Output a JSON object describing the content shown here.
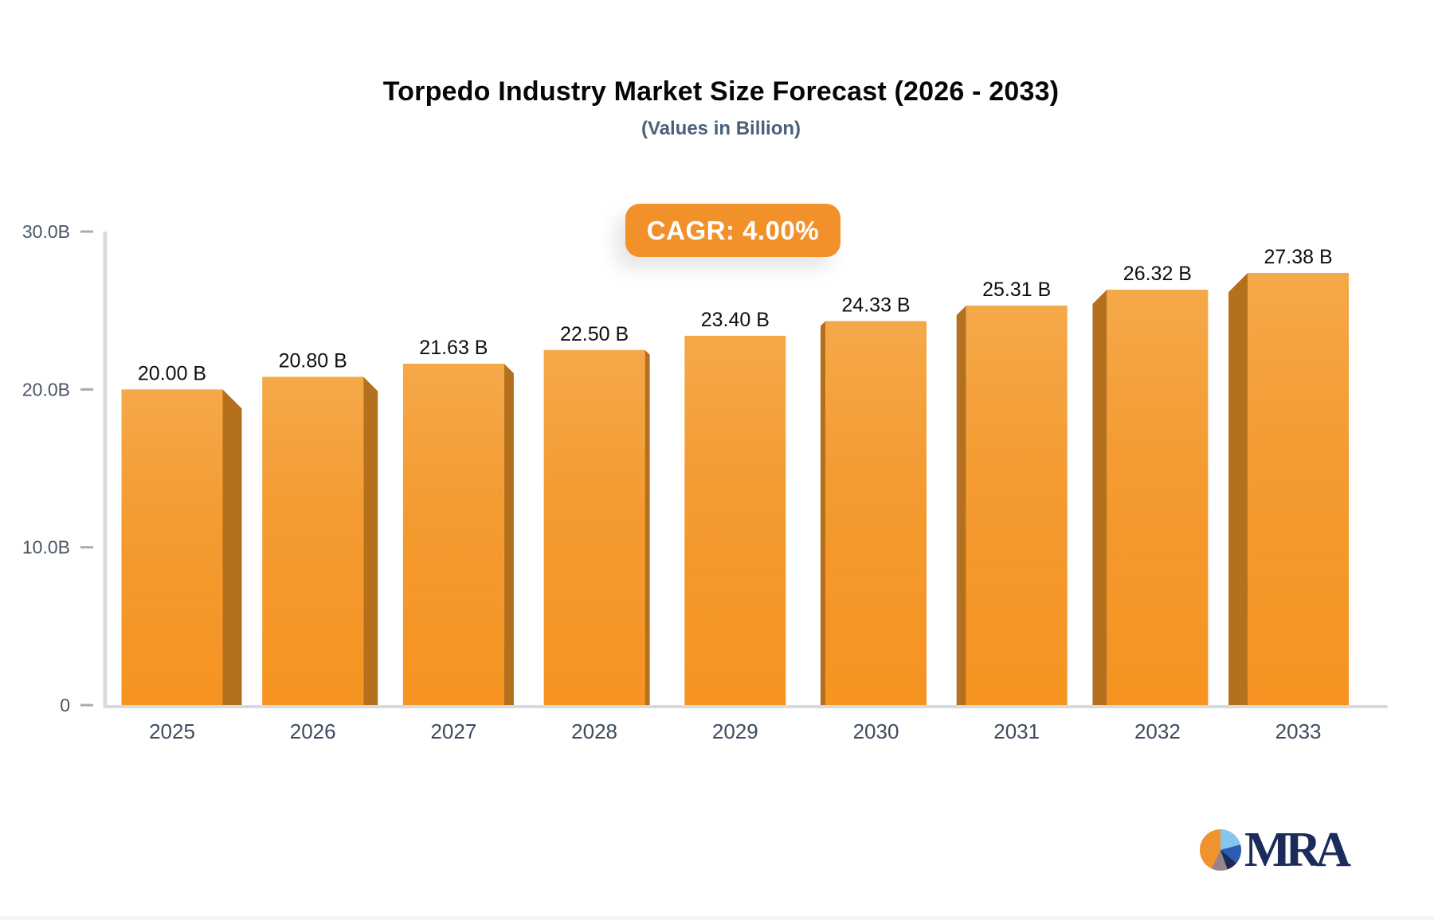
{
  "chart_data": {
    "type": "bar",
    "title": "Torpedo Industry Market Size Forecast (2026 - 2033)",
    "subtitle": "(Values in Billion)",
    "annotation": "CAGR: 4.00%",
    "categories": [
      "2025",
      "2026",
      "2027",
      "2028",
      "2029",
      "2030",
      "2031",
      "2032",
      "2033"
    ],
    "values": [
      20.0,
      20.8,
      21.63,
      22.5,
      23.4,
      24.33,
      25.31,
      26.32,
      27.38
    ],
    "value_labels": [
      "20.00 B",
      "20.80 B",
      "21.63 B",
      "22.50 B",
      "23.40 B",
      "24.33 B",
      "25.31 B",
      "26.32 B",
      "27.38 B"
    ],
    "xlabel": "",
    "ylabel": "",
    "ylim": [
      0,
      30
    ],
    "yticks": [
      {
        "v": 0,
        "label": "0"
      },
      {
        "v": 10,
        "label": "10.0B"
      },
      {
        "v": 20,
        "label": "20.0B"
      },
      {
        "v": 30,
        "label": "30.0B"
      }
    ],
    "grid": false,
    "legend": "none",
    "bar_style": "3d-perspective-center-vanishing"
  },
  "colors": {
    "bar_face_top": "#f5a849",
    "bar_face_mid": "#f49a30",
    "bar_face_bottom": "#f69321",
    "bar_side": "#b5701d",
    "axis_line": "#d8dade",
    "tick_dash": "#a6acb6",
    "ytick_text": "#4a5565",
    "xtick_text": "#3c4b60",
    "value_text": "#101010",
    "badge_bg": "#f2902a",
    "badge_text": "#ffffff",
    "title_text": "#060606",
    "subtitle_text": "#4a6078",
    "logo_text": "#1b2b5b",
    "logo_orange": "#f0922e",
    "logo_lightblue": "#86c5ec",
    "logo_blue": "#2b5cad",
    "logo_navy": "#1a2b55",
    "logo_gray": "#96848a"
  },
  "logo": {
    "text": "MRA"
  }
}
